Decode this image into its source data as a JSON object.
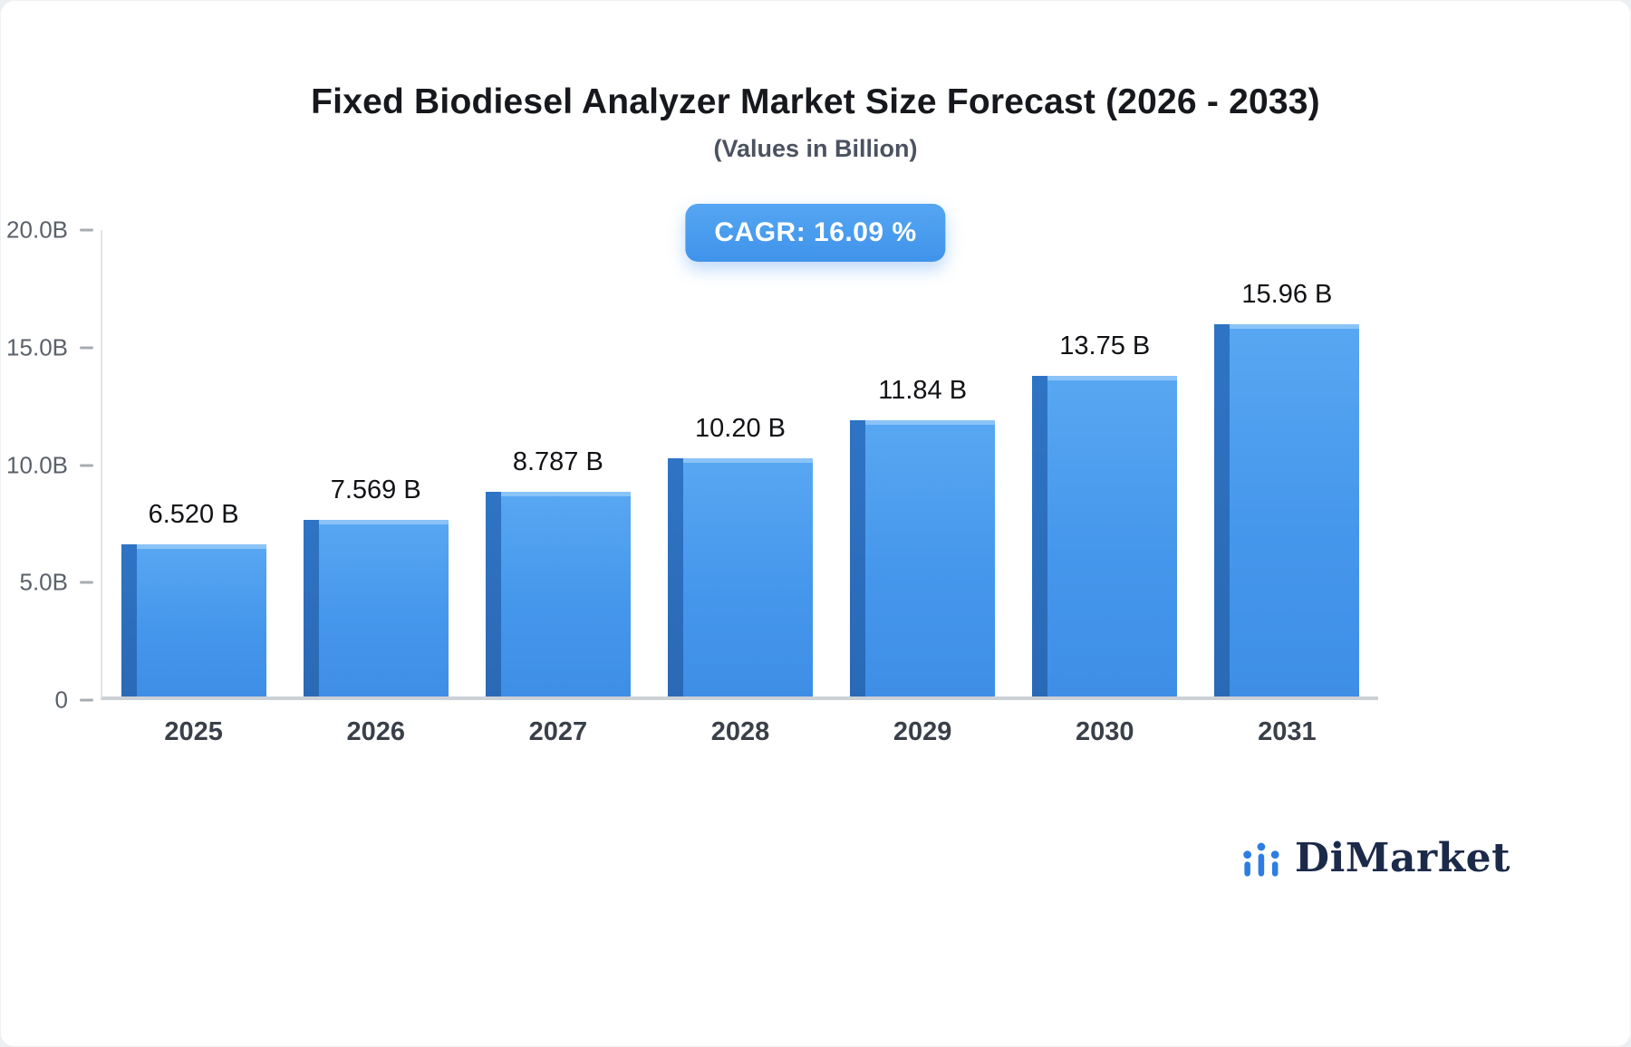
{
  "title": "Fixed Biodiesel Analyzer Market Size Forecast (2026 - 2033)",
  "subtitle": "(Values in Billion)",
  "badge": {
    "label": "CAGR: 16.09 %"
  },
  "chart_data": {
    "type": "bar",
    "title": "Fixed Biodiesel Analyzer Market Size Forecast (2026 - 2033)",
    "subtitle": "(Values in Billion)",
    "cagr_percent": 16.09,
    "categories": [
      "2025",
      "2026",
      "2027",
      "2028",
      "2029",
      "2030",
      "2031"
    ],
    "values": [
      6.52,
      7.569,
      8.787,
      10.2,
      11.84,
      13.75,
      15.96
    ],
    "value_labels": [
      "6.520 B",
      "7.569 B",
      "8.787 B",
      "10.20 B",
      "11.84 B",
      "13.75 B",
      "15.96 B"
    ],
    "xlabel": "",
    "ylabel": "",
    "ylim": [
      0,
      20
    ],
    "yticks": [
      "20.0B",
      "15.0B",
      "10.0B",
      "5.0B",
      "0"
    ],
    "grid": "off",
    "legend": "none",
    "bar_color": "#4597ec",
    "bar_side_color": "#2a69b5",
    "bar_top_color": "#8ac3f7",
    "badge_color": "#3f93ea"
  },
  "logo": {
    "text": "DiMarket",
    "icon": "bar-chart-icon",
    "color": "#2e7de2"
  }
}
